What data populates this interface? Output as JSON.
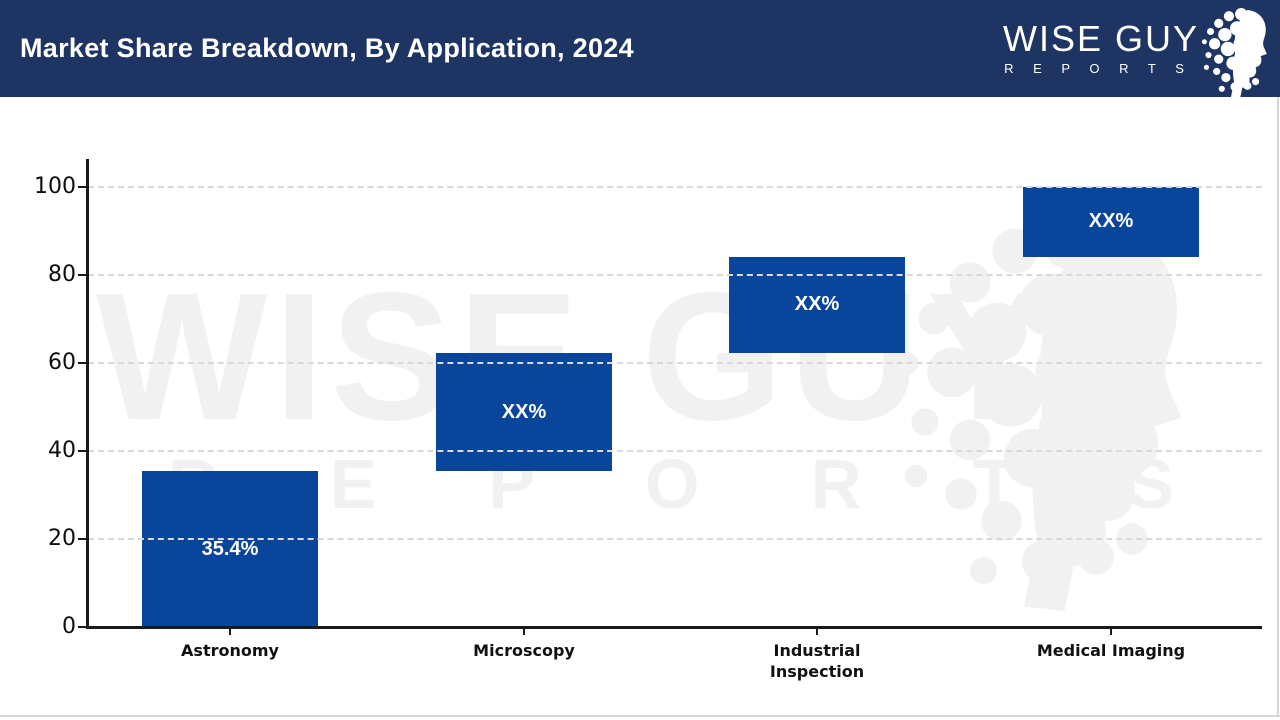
{
  "header": {
    "title": "Market Share Breakdown, By Application, 2024",
    "logo_line1": "WISE GUY",
    "logo_line2": "R E P O R T S"
  },
  "watermark": {
    "line1": "WISE GUY",
    "line2": "R E P O R T S"
  },
  "colors": {
    "header_bg": "#1e3563",
    "bar": "#0a459c",
    "bar_label": "#ffffff",
    "axis": "#1a1a1a",
    "gridline": "#d9d9d9",
    "watermark": "#f1f1f2",
    "title_text": "#ffffff"
  },
  "chart_data": {
    "type": "bar",
    "subtype": "waterfall",
    "title": "Market Share Breakdown, By Application, 2024",
    "categories": [
      "Astronomy",
      "Microscopy",
      "Industrial\nInspection",
      "Medical Imaging"
    ],
    "segments": [
      {
        "category": "Astronomy",
        "start": 0,
        "end": 35.4,
        "label": "35.4%"
      },
      {
        "category": "Microscopy",
        "start": 35.4,
        "end": 62.3,
        "label": "XX%"
      },
      {
        "category": "Industrial Inspection",
        "start": 62.3,
        "end": 84.1,
        "label": "XX%"
      },
      {
        "category": "Medical Imaging",
        "start": 84.1,
        "end": 100,
        "label": "XX%"
      }
    ],
    "yticks": [
      0,
      20,
      40,
      60,
      80,
      100
    ],
    "ylim": [
      0,
      106
    ],
    "xlabel": "",
    "ylabel": "",
    "grid": "horizontal-dashed",
    "legend": "none"
  }
}
